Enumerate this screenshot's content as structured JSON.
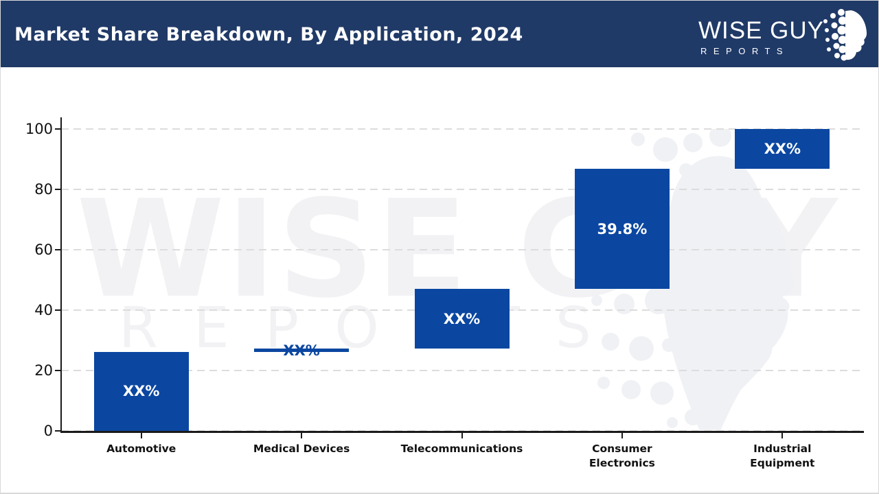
{
  "header": {
    "title": "Market Share Breakdown, By Application, 2024",
    "bg_color": "#203a67",
    "logo": {
      "line1": "WISE GUY",
      "line2": "REPORTS"
    }
  },
  "watermark": {
    "line1": "WISE GUY",
    "line2": "REPORTS",
    "color": "#f2f2f5"
  },
  "chart_data": {
    "type": "bar",
    "subtype": "waterfall",
    "title": "Market Share Breakdown, By Application, 2024",
    "categories": [
      "Automotive",
      "Medical Devices",
      "Telecommunications",
      "Consumer Electronics",
      "Industrial Equipment"
    ],
    "x_labels": [
      {
        "lines": [
          "Automotive"
        ]
      },
      {
        "lines": [
          "Medical Devices"
        ]
      },
      {
        "lines": [
          "Telecommunications"
        ]
      },
      {
        "lines": [
          "Consumer",
          "Electronics"
        ]
      },
      {
        "lines": [
          "Industrial",
          "Equipment"
        ]
      }
    ],
    "bars": [
      {
        "category": "Automotive",
        "start": 0,
        "end": 26.2,
        "value": 26.2,
        "label": "XX%"
      },
      {
        "category": "Medical Devices",
        "start": 26.2,
        "end": 27.2,
        "value": 1.0,
        "label": "XX%"
      },
      {
        "category": "Telecommunications",
        "start": 27.2,
        "end": 47.0,
        "value": 19.8,
        "label": "XX%"
      },
      {
        "category": "Consumer Electronics",
        "start": 47.0,
        "end": 86.8,
        "value": 39.8,
        "label": "39.8%"
      },
      {
        "category": "Industrial Equipment",
        "start": 86.8,
        "end": 100.0,
        "value": 13.2,
        "label": "XX%"
      }
    ],
    "ylim": [
      0,
      100
    ],
    "yticks": [
      0,
      20,
      40,
      60,
      80,
      100
    ],
    "xlabel": "",
    "ylabel": "",
    "grid": "horizontal-dashed",
    "legend": "none",
    "bar_color": "#0b47a1",
    "bar_label_color": "#ffffff"
  }
}
